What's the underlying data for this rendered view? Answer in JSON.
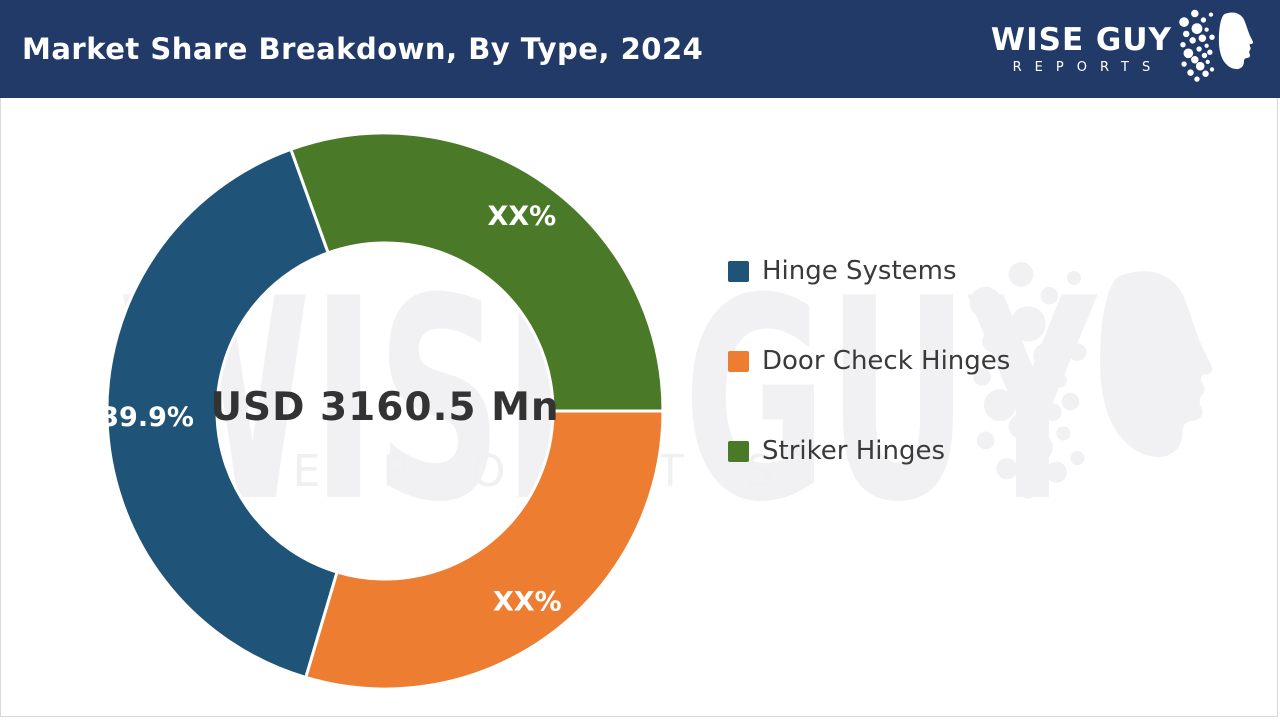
{
  "header": {
    "title": "Market Share Breakdown, By Type, 2024",
    "logo": {
      "name_top": "WISE GUY",
      "name_bottom": "REPORTS"
    }
  },
  "watermark": {
    "text_top": "WISE GUY",
    "text_bottom": "REPORTS"
  },
  "chart_data": {
    "type": "pie",
    "variant": "donut",
    "title": "Market Share Breakdown, By Type, 2024",
    "center_label": "USD 3160.5 Mn",
    "legend_position": "right",
    "start_angle_deg": 0,
    "direction": "ccw",
    "series": [
      {
        "name": "Hinge Systems",
        "value_pct": 39.9,
        "slice_label": "39.9%",
        "color": "#1F5377"
      },
      {
        "name": "Door Check Hinges",
        "value_pct": 29.6,
        "slice_label": "XX%",
        "color": "#ED7D31"
      },
      {
        "name": "Striker Hinges",
        "value_pct": 30.5,
        "slice_label": "XX%",
        "color": "#4A7A28"
      }
    ],
    "draw_order": [
      2,
      0,
      1
    ]
  }
}
